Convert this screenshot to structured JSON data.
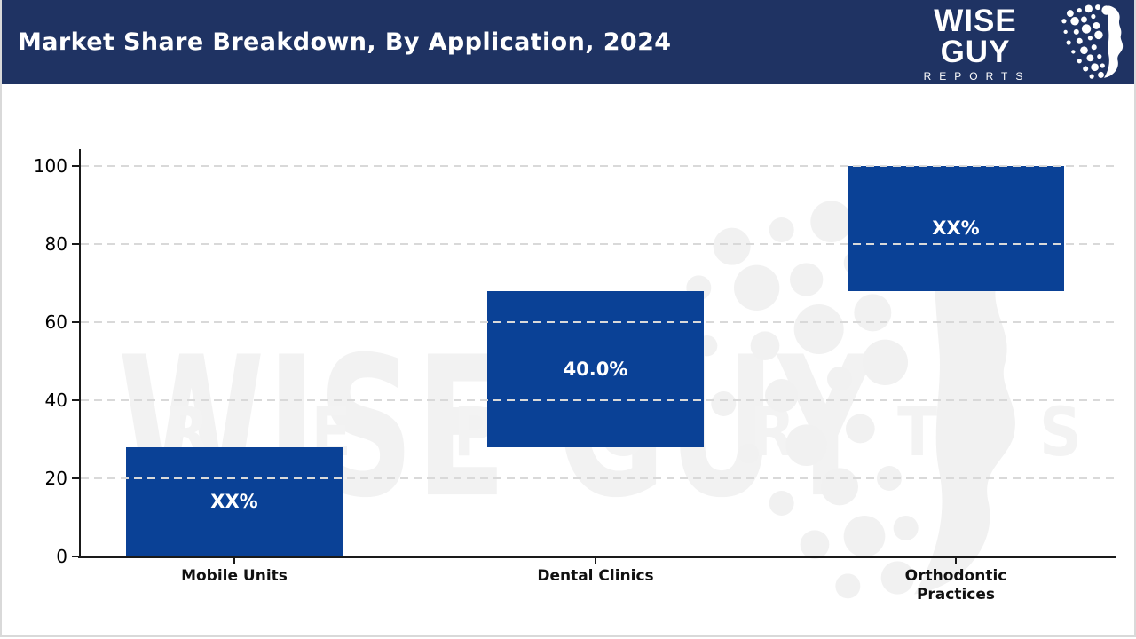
{
  "header": {
    "title": "Market Share Breakdown, By Application, 2024",
    "logo": {
      "line1": "WISE GUY",
      "line2": "REPORTS"
    },
    "bg_color": "#1f3363"
  },
  "watermark": {
    "line1": "WISE GUY",
    "line2": "REPORTS"
  },
  "chart_data": {
    "type": "bar",
    "subtype": "waterfall",
    "title": "Market Share Breakdown, By Application, 2024",
    "xlabel": "",
    "ylabel": "",
    "categories": [
      "Mobile Units",
      "Dental Clinics",
      "Orthodontic Practices"
    ],
    "segments": [
      {
        "category": "Mobile Units",
        "start": 0,
        "end": 28,
        "label": "XX%"
      },
      {
        "category": "Dental Clinics",
        "start": 28,
        "end": 68,
        "label": "40.0%"
      },
      {
        "category": "Orthodontic Practices",
        "start": 68,
        "end": 100,
        "label": "XX%"
      }
    ],
    "yticks": [
      0,
      20,
      40,
      60,
      80,
      100
    ],
    "ylim": [
      0,
      104
    ],
    "grid": "dashed-horizontal",
    "legend": "none",
    "bar_color": "#0a4196",
    "bar_label_color": "#ffffff",
    "axis_color": "#1a1a1a",
    "grid_color": "#d9d9d9"
  }
}
